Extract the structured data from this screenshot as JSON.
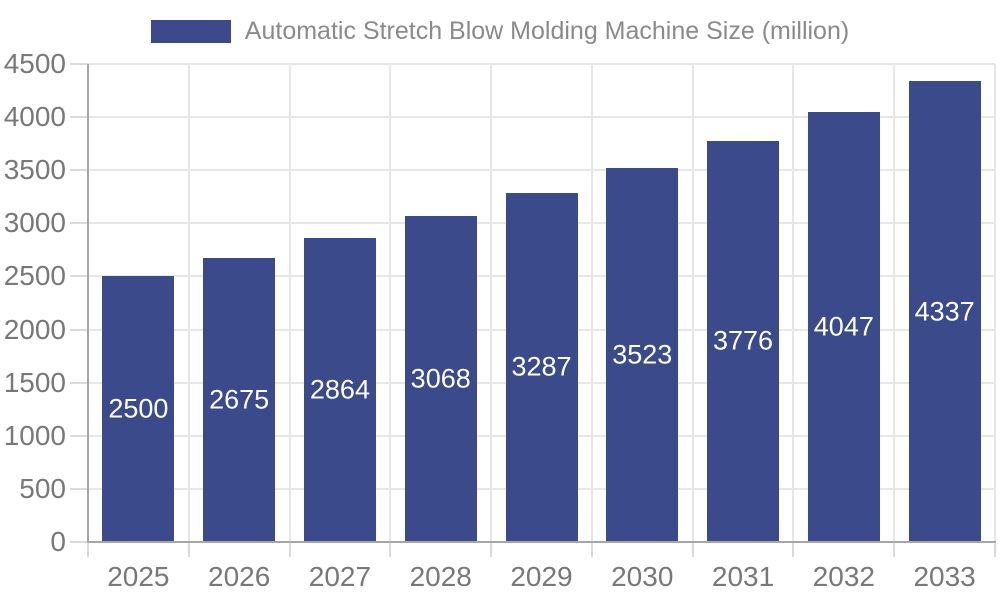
{
  "legend": {
    "label": "Automatic Stretch Blow Molding Machine Size (million)",
    "swatch_color": "#3A4A8B"
  },
  "chart_data": {
    "type": "bar",
    "title": "Automatic Stretch Blow Molding Machine Size (million)",
    "series_name": "Automatic Stretch Blow Molding Machine Size (million)",
    "categories": [
      "2025",
      "2026",
      "2027",
      "2028",
      "2029",
      "2030",
      "2031",
      "2032",
      "2033"
    ],
    "values": [
      2500,
      2675,
      2864,
      3068,
      3287,
      3523,
      3776,
      4047,
      4337
    ],
    "xlabel": "",
    "ylabel": "",
    "ylim": [
      0,
      4500
    ],
    "ytick_step": 500,
    "ytick_labels": [
      "0",
      "500",
      "1000",
      "1500",
      "2000",
      "2500",
      "3000",
      "3500",
      "4000",
      "4500"
    ],
    "grid": true,
    "legend_position": "top",
    "value_labels": "inside-middle",
    "colors": {
      "bar": "#3A4A8B",
      "value_label": "#FFFFFF",
      "axis_text": "#787878",
      "legend_text": "#8A8A8A",
      "gridline": "#E7E7E7",
      "axis_line": "#A6A6A6",
      "tick": "#DADADA",
      "background": "#FFFFFF"
    }
  }
}
